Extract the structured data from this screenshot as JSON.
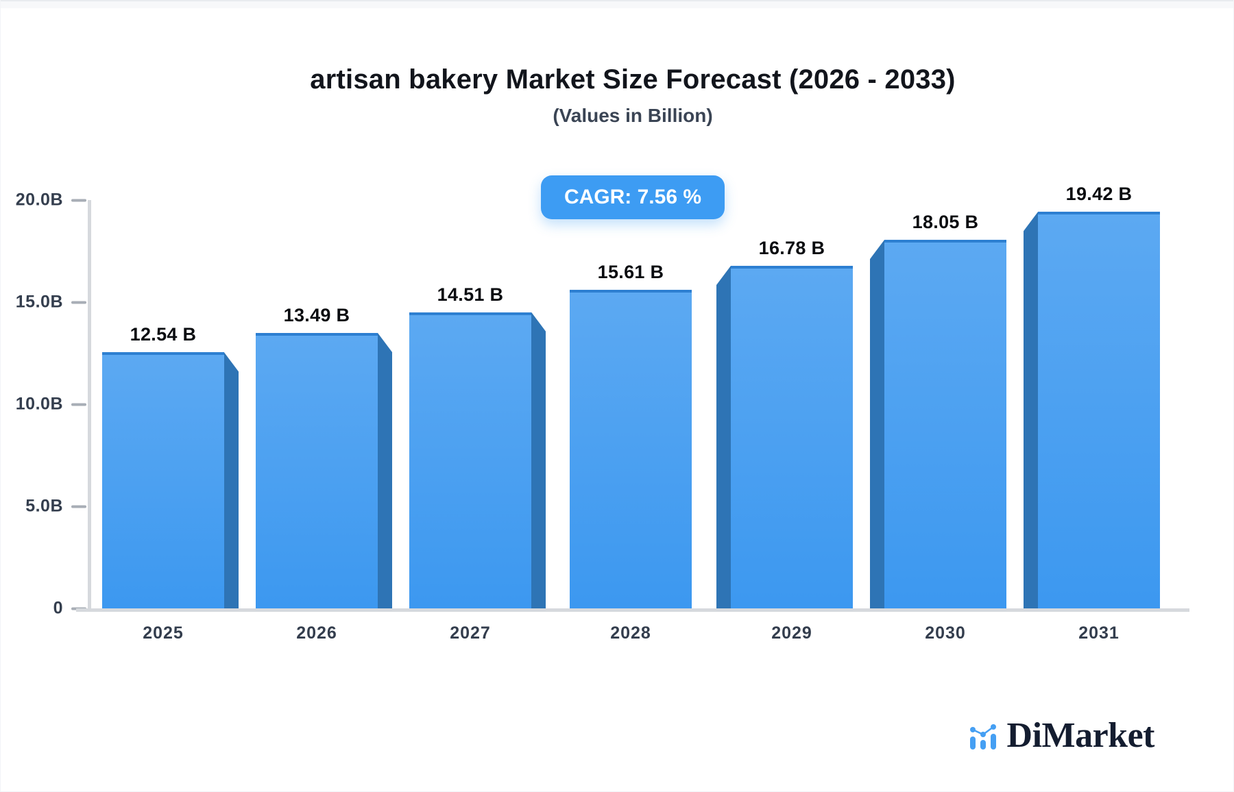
{
  "title": "artisan bakery Market Size Forecast (2026 - 2033)",
  "subtitle": "(Values in Billion)",
  "cagr": {
    "label": "CAGR: 7.56 %"
  },
  "brand": {
    "name": "DiMarket",
    "icon": "bar-line-chart-icon"
  },
  "colors": {
    "badge_bg": "#3d9cf3",
    "bar_face_top": "#5ca9f2",
    "bar_face_bottom": "#3c98f0",
    "bar_top_edge": "#2d7fd1",
    "bar_side": "#2e74b5",
    "axis_line": "#d6d9dd",
    "tick_dash": "#a8aeb6",
    "tick_text": "#343e4e",
    "xlabel_text": "#333d4d",
    "value_text": "#0a0c10",
    "title_text": "#12151c",
    "subtitle_text": "#3a4454",
    "logo_text": "#141d30",
    "logo_icon_blue": "#459ff3"
  },
  "chart_data": {
    "type": "bar",
    "title": "artisan bakery Market Size Forecast (2026 - 2033)",
    "subtitle": "(Values in Billion)",
    "categories": [
      "2025",
      "2026",
      "2027",
      "2028",
      "2029",
      "2030",
      "2031"
    ],
    "values": [
      12.54,
      13.49,
      14.51,
      15.61,
      16.78,
      18.05,
      19.42
    ],
    "bar_labels": [
      "12.54 B",
      "13.49 B",
      "14.51 B",
      "15.61 B",
      "16.78 B",
      "18.05 B",
      "19.42 B"
    ],
    "unit": "B",
    "xlabel": "",
    "ylabel": "",
    "ylim": [
      0,
      20
    ],
    "yticks": [
      "20.0B",
      "15.0B",
      "10.0B",
      "5.0B",
      "0"
    ],
    "grid": false,
    "legend": false,
    "effect_3d": true,
    "side_3d": [
      "right",
      "right",
      "right",
      "none",
      "left",
      "left",
      "left"
    ]
  }
}
